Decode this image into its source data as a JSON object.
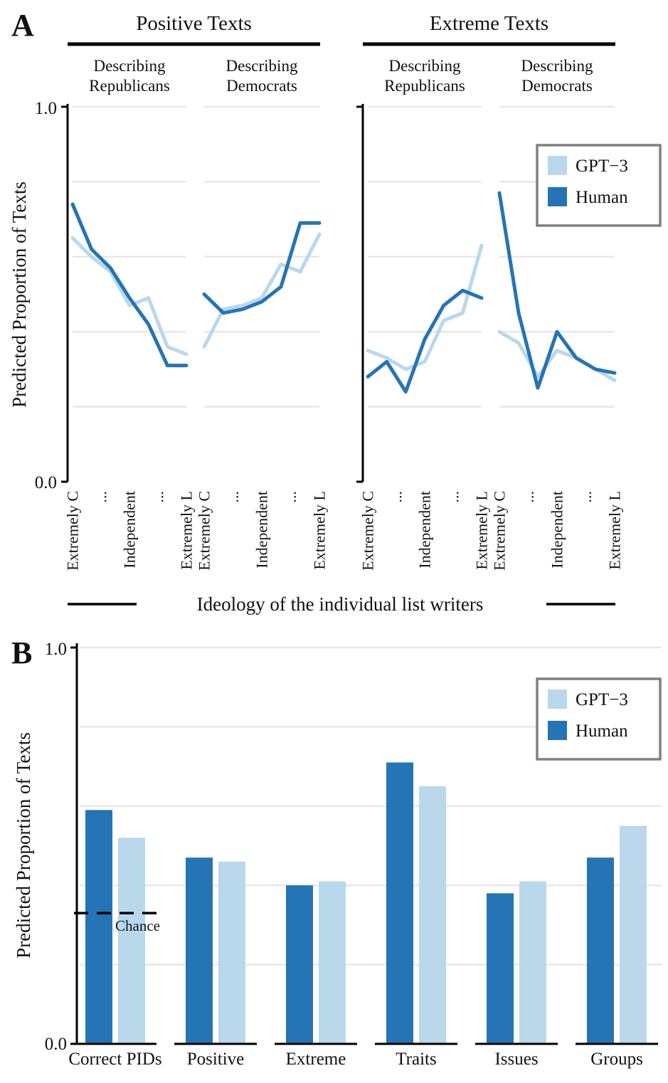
{
  "figure": {
    "panel_labels": [
      "A",
      "B"
    ],
    "legend": {
      "items": [
        {
          "label": "GPT−3",
          "color_key": "gpt3"
        },
        {
          "label": "Human",
          "color_key": "human"
        }
      ]
    },
    "colors": {
      "human": "#2574b5",
      "gpt3": "#b9d8ec",
      "grid": "#e8e8e8",
      "axis": "#000000",
      "legend_border": "#808080"
    }
  },
  "chart_data": [
    {
      "type": "line",
      "panel": "A",
      "ylabel": "Predicted Proportion of Texts",
      "xlabel": "Ideology of the individual list writers",
      "ylim": [
        0.0,
        1.0
      ],
      "y_ticks": [
        "0.0",
        "1.0"
      ],
      "grid_values": [
        0.2,
        0.4,
        0.6,
        0.8,
        1.0
      ],
      "x_tick_labels": [
        "Extremely C",
        "...",
        "Independent",
        "...",
        "Extremely L"
      ],
      "legend_position": "top-right",
      "groups": [
        {
          "title": "Positive Texts",
          "subpanels": [
            {
              "subtitle_lines": [
                "Describing",
                "Republicans"
              ],
              "series": [
                {
                  "name": "GPT-3",
                  "values": [
                    0.65,
                    0.6,
                    0.56,
                    0.47,
                    0.49,
                    0.36,
                    0.34
                  ]
                },
                {
                  "name": "Human",
                  "values": [
                    0.74,
                    0.62,
                    0.57,
                    0.49,
                    0.42,
                    0.31,
                    0.31
                  ]
                }
              ]
            },
            {
              "subtitle_lines": [
                "Describing",
                "Democrats"
              ],
              "series": [
                {
                  "name": "GPT-3",
                  "values": [
                    0.36,
                    0.46,
                    0.47,
                    0.49,
                    0.58,
                    0.56,
                    0.66
                  ]
                },
                {
                  "name": "Human",
                  "values": [
                    0.5,
                    0.45,
                    0.46,
                    0.48,
                    0.52,
                    0.69,
                    0.69
                  ]
                }
              ]
            }
          ]
        },
        {
          "title": "Extreme Texts",
          "subpanels": [
            {
              "subtitle_lines": [
                "Describing",
                "Republicans"
              ],
              "series": [
                {
                  "name": "GPT-3",
                  "values": [
                    0.35,
                    0.33,
                    0.3,
                    0.32,
                    0.43,
                    0.45,
                    0.63
                  ]
                },
                {
                  "name": "Human",
                  "values": [
                    0.28,
                    0.32,
                    0.24,
                    0.38,
                    0.47,
                    0.51,
                    0.49
                  ]
                }
              ]
            },
            {
              "subtitle_lines": [
                "Describing",
                "Democrats"
              ],
              "series": [
                {
                  "name": "GPT-3",
                  "values": [
                    0.4,
                    0.37,
                    0.28,
                    0.35,
                    0.33,
                    0.3,
                    0.27
                  ]
                },
                {
                  "name": "Human",
                  "values": [
                    0.77,
                    0.45,
                    0.25,
                    0.4,
                    0.33,
                    0.3,
                    0.29
                  ]
                }
              ]
            }
          ]
        }
      ]
    },
    {
      "type": "bar",
      "panel": "B",
      "ylabel": "Predicted Proportion of Texts",
      "ylim": [
        0.0,
        1.0
      ],
      "y_ticks": [
        "0.0",
        "1.0"
      ],
      "grid_values": [
        0.2,
        0.4,
        0.6,
        0.8,
        1.0
      ],
      "categories": [
        "Correct PIDs",
        "Positive",
        "Extreme",
        "Traits",
        "Issues",
        "Groups"
      ],
      "series": [
        {
          "name": "Human",
          "values": [
            0.59,
            0.47,
            0.4,
            0.71,
            0.38,
            0.47
          ]
        },
        {
          "name": "GPT-3",
          "values": [
            0.52,
            0.46,
            0.41,
            0.65,
            0.41,
            0.55
          ]
        }
      ],
      "chance_line": {
        "label": "Chance",
        "value": 0.33,
        "category": "Correct PIDs"
      },
      "legend_position": "top-right"
    }
  ]
}
